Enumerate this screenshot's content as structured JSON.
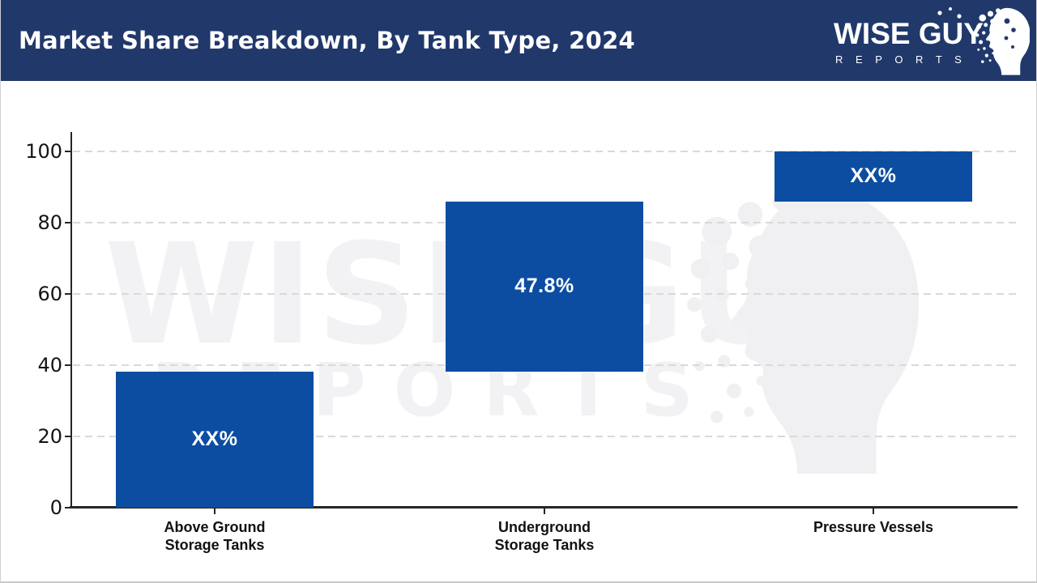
{
  "header": {
    "title": "Market Share Breakdown, By Tank Type, 2024",
    "logo": {
      "line1": "WISE GUY",
      "line2": "R E P O R T S"
    }
  },
  "watermark": {
    "line1": "WISE GUY",
    "line2": "REPORTS"
  },
  "colors": {
    "header_bg": "#21386B",
    "bar": "#0C4DA2",
    "bar_label": "#ffffff",
    "axis": "#262626",
    "gridline": "#d9d9d9",
    "watermark": "#f2f2f5"
  },
  "chart_data": {
    "type": "bar",
    "subtype": "waterfall-stacked-percent",
    "title": "Market Share Breakdown, By Tank Type, 2024",
    "categories": [
      [
        "Above Ground",
        "Storage Tanks"
      ],
      [
        "Underground",
        "Storage Tanks"
      ],
      [
        "Pressure Vessels"
      ]
    ],
    "series": [
      {
        "name": "Market share (%)",
        "segments": [
          {
            "category": "Above Ground Storage Tanks",
            "start": 0,
            "end": 38.2,
            "value_label": "XX%"
          },
          {
            "category": "Underground Storage Tanks",
            "start": 38.2,
            "end": 86.0,
            "value_label": "47.8%"
          },
          {
            "category": "Pressure Vessels",
            "start": 86.0,
            "end": 100,
            "value_label": "XX%"
          }
        ]
      }
    ],
    "xlabel": "",
    "ylabel": "",
    "ylim": [
      0,
      100
    ],
    "yticks": [
      0,
      20,
      40,
      60,
      80,
      100
    ],
    "grid": "horizontal-dashed",
    "legend": "none"
  }
}
